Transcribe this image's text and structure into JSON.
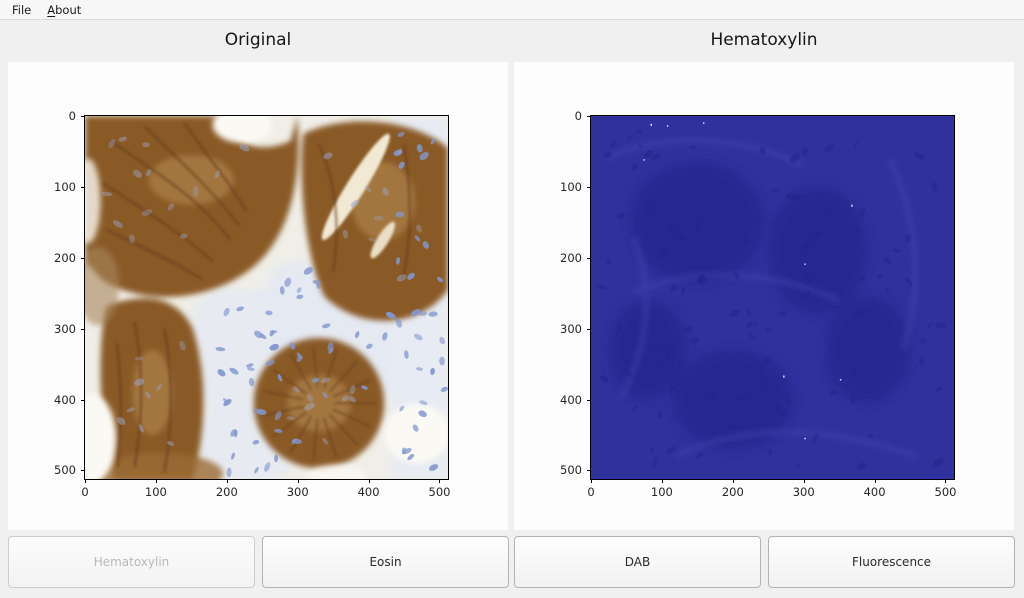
{
  "menubar": {
    "items": [
      {
        "label": "File",
        "mnemonic_index": null
      },
      {
        "label": "About",
        "mnemonic_index": 0
      }
    ]
  },
  "figures": [
    {
      "title": "Original"
    },
    {
      "title": "Hematoxylin"
    }
  ],
  "axes": {
    "tick_labels": [
      "0",
      "100",
      "200",
      "300",
      "400",
      "500"
    ],
    "tick_values": [
      0,
      100,
      200,
      300,
      400,
      500
    ],
    "data_extent": 512
  },
  "buttons": [
    {
      "label": "Hematoxylin",
      "enabled": false
    },
    {
      "label": "Eosin",
      "enabled": true
    },
    {
      "label": "DAB",
      "enabled": true
    },
    {
      "label": "Fluorescence",
      "enabled": true
    }
  ],
  "colors": {
    "hematoxylin_blue": "#31319e",
    "hematoxylin_dark": "#23238a",
    "dab_brown": "#8a5a28",
    "dab_brown_dark": "#60391a",
    "stroma_pale": "#e3e8f1",
    "nuclei_blue": "#8297cd",
    "window_bg": "#f0f0f0",
    "panel_bg": "#fdfdfd"
  }
}
